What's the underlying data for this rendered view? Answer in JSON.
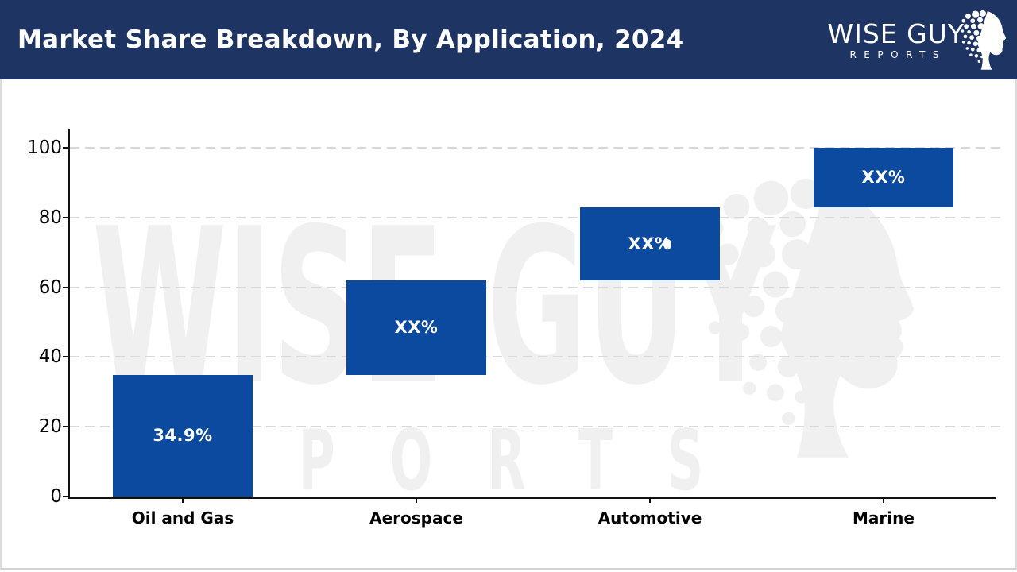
{
  "header": {
    "title": "Market Share Breakdown, By Application, 2024",
    "logo": {
      "wordmark": "WISE GUY",
      "subtitle": "REPORTS"
    }
  },
  "watermark": {
    "wordmark": "WISE GUY",
    "subtitle": "REPORTS"
  },
  "chart_data": {
    "type": "bar",
    "subtype": "waterfall",
    "title": "Market Share Breakdown, By Application, 2024",
    "categories": [
      "Oil and Gas",
      "Aerospace",
      "Automotive",
      "Marine"
    ],
    "segments": [
      {
        "category": "Oil and Gas",
        "start": 0,
        "end": 34.9,
        "label": "34.9%"
      },
      {
        "category": "Aerospace",
        "start": 34.9,
        "end": 62,
        "label": "XX%"
      },
      {
        "category": "Automotive",
        "start": 62,
        "end": 83,
        "label": "XX%"
      },
      {
        "category": "Marine",
        "start": 83,
        "end": 100,
        "label": "XX%"
      }
    ],
    "yticks": [
      0,
      20,
      40,
      60,
      80,
      100
    ],
    "ylim": [
      0,
      105
    ],
    "xlabel": "",
    "ylabel": "",
    "legend": null,
    "grid": "horizontal-dashed",
    "bar_color": "#0b4a9e",
    "bar_label_color": "#ffffff",
    "axis_color": "#111111",
    "grid_color": "#d8d8d8",
    "header_color": "#1e3463",
    "watermark_color": "#f0f0f1"
  }
}
